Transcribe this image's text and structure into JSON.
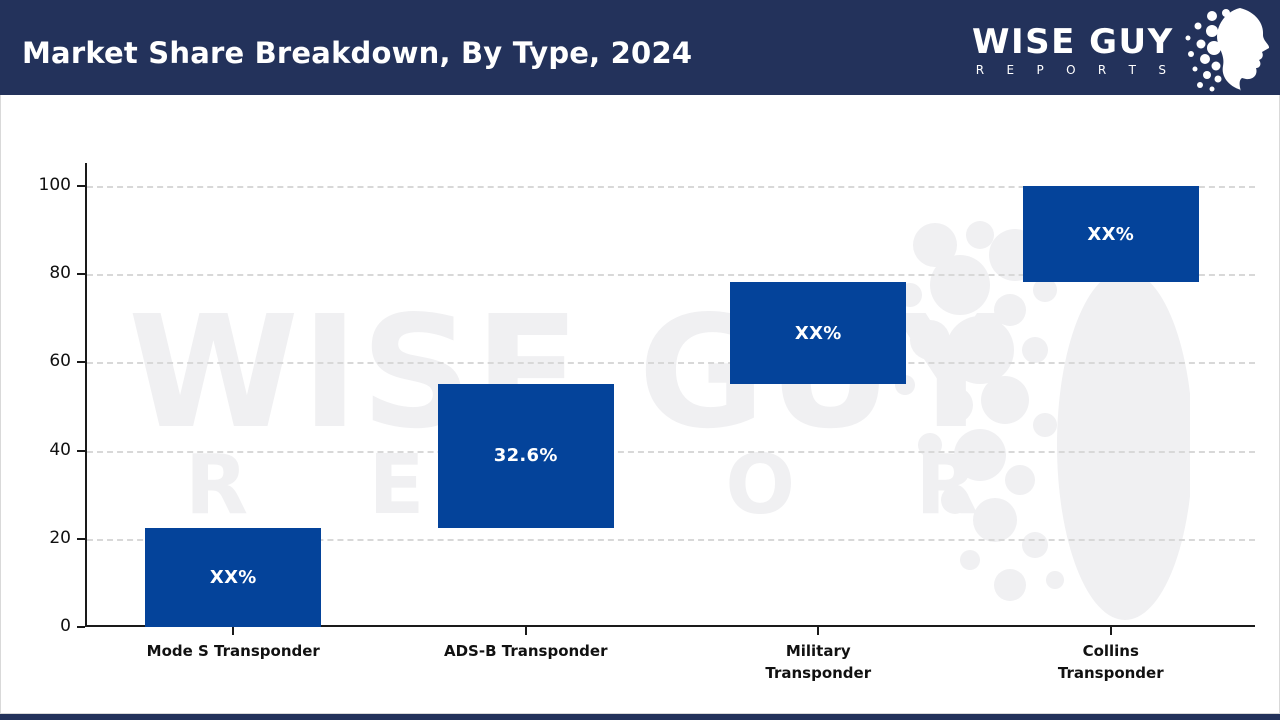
{
  "header": {
    "title": "Market Share Breakdown, By Type, 2024",
    "logo": {
      "wordmark": "WISE GUY",
      "subtext": "REPORTS"
    }
  },
  "watermark": {
    "wordmark": "WISE GUY",
    "subtext": "REPORTS"
  },
  "colors": {
    "header_navy": "#23325b",
    "bar_blue": "#04439a",
    "gridline_gray": "#d8d8d8",
    "watermark_gray": "#f0f0f2"
  },
  "chart_data": {
    "type": "bar",
    "subtype": "waterfall",
    "title": "Market Share Breakdown, By Type, 2024",
    "categories": [
      "Mode S Transponder",
      "ADS-B Transponder",
      "Military\nTransponder",
      "Collins\nTransponder"
    ],
    "segments": [
      {
        "category": "Mode S Transponder",
        "start": 0,
        "end": 22.5,
        "label": "XX%"
      },
      {
        "category": "ADS-B Transponder",
        "start": 22.5,
        "end": 55.1,
        "label": "32.6%",
        "value": 32.6
      },
      {
        "category": "Military Transponder",
        "start": 55.1,
        "end": 78.2,
        "label": "XX%"
      },
      {
        "category": "Collins Transponder",
        "start": 78.2,
        "end": 100,
        "label": "XX%"
      }
    ],
    "xlabel": "",
    "ylabel": "",
    "yticks": [
      0,
      20,
      40,
      60,
      80,
      100
    ],
    "ylim": [
      0,
      105
    ],
    "grid": "horizontal-dashed",
    "legend": null
  }
}
